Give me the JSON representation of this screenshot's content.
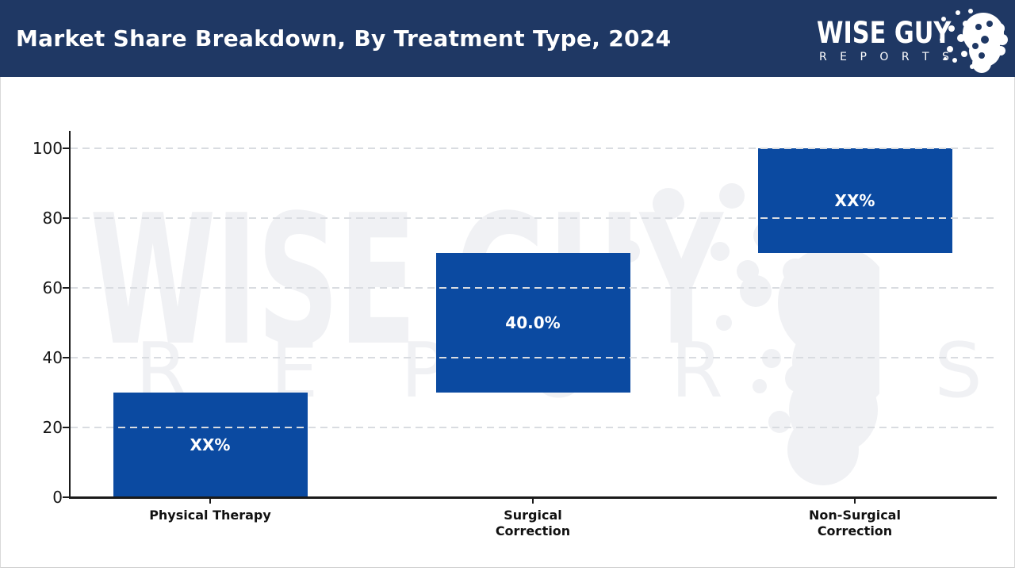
{
  "header": {
    "title": "Market Share Breakdown, By Treatment Type, 2024",
    "bg_color": "#1f3864",
    "logo": {
      "line1": "WISE GUY",
      "line2": "R E P O R T S"
    }
  },
  "watermark": {
    "line1": "WISE GUY",
    "line2": "R E P O R T S"
  },
  "chart_data": {
    "type": "bar",
    "variant": "waterfall",
    "title": "Market Share Breakdown, By Treatment Type, 2024",
    "categories": [
      {
        "lines": [
          "Physical Therapy"
        ]
      },
      {
        "lines": [
          "Surgical",
          "Correction"
        ]
      },
      {
        "lines": [
          "Non-Surgical",
          "Correction"
        ]
      }
    ],
    "bars": [
      {
        "category": "Physical Therapy",
        "start": 0,
        "end": 30,
        "label": "XX%"
      },
      {
        "category": "Surgical Correction",
        "start": 30,
        "end": 70,
        "label": "40.0%"
      },
      {
        "category": "Non-Surgical Correction",
        "start": 70,
        "end": 100,
        "label": "XX%"
      }
    ],
    "ylim": [
      0,
      100
    ],
    "yticks": [
      0,
      20,
      40,
      60,
      80,
      100
    ],
    "xlabel": "",
    "ylabel": "",
    "legend": null,
    "grid": {
      "axis": "y",
      "style": "dashed",
      "over_bars": true,
      "color": "#d9dce1"
    },
    "bar_color": "#0b4aa1",
    "value_label_color": "#ffffff"
  }
}
